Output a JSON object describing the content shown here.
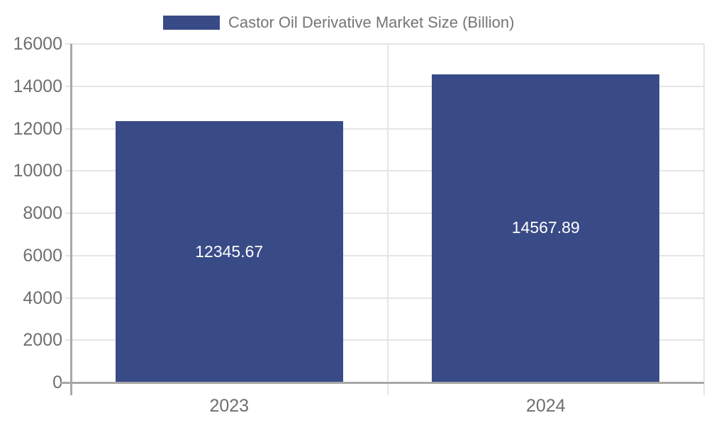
{
  "legend": {
    "label": "Castor Oil Derivative Market Size (Billion)"
  },
  "chart_data": {
    "type": "bar",
    "title": "Castor Oil Derivative Market Size (Billion)",
    "categories": [
      "2023",
      "2024"
    ],
    "values": [
      12345.67,
      14567.89
    ],
    "value_labels": [
      "12345.67",
      "14567.89"
    ],
    "xlabel": "",
    "ylabel": "",
    "ylim": [
      0,
      16000
    ],
    "yticks": [
      0,
      2000,
      4000,
      6000,
      8000,
      10000,
      12000,
      14000,
      16000
    ],
    "grid": true,
    "legend_position": "top",
    "bar_width_fraction": 0.72
  },
  "colors": {
    "bar": "#394B87",
    "grid": "#e5e5e5",
    "axis": "#a8a8a8",
    "tick_text": "#6f6f6f",
    "legend_text": "#757575",
    "bar_label_text": "#ffffff",
    "background": "#ffffff"
  }
}
